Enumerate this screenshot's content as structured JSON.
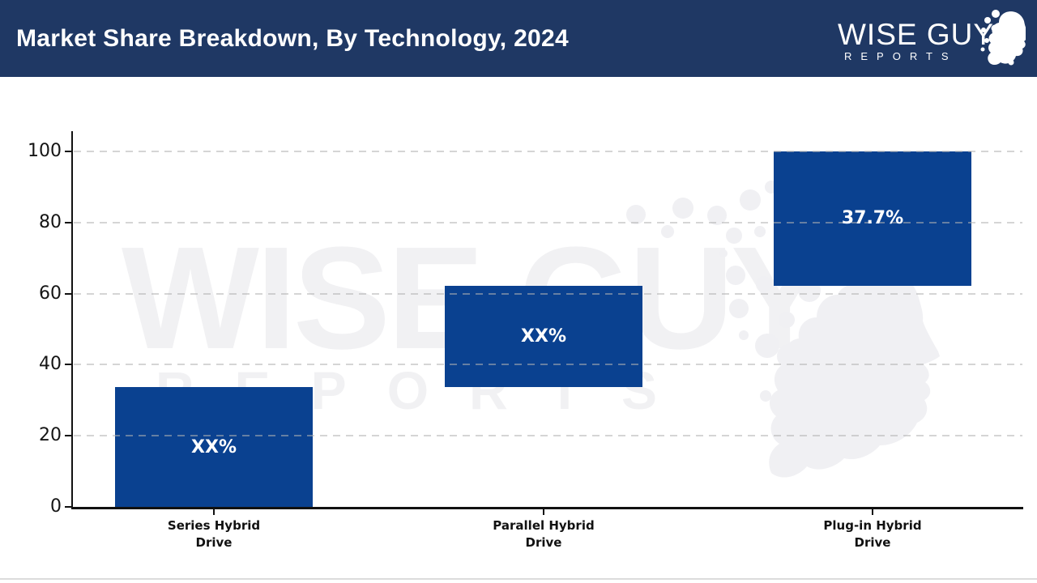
{
  "header": {
    "title": "Market Share Breakdown, By Technology, 2024",
    "logo": {
      "line1": "WISE GUY",
      "line2": "REPORTS"
    },
    "bg_color": "#1f3864"
  },
  "watermark": {
    "line1": "WISE GUY",
    "line2": "REPORTS"
  },
  "chart_data": {
    "type": "bar",
    "subtype": "waterfall",
    "title": "Market Share Breakdown, By Technology, 2024",
    "categories": [
      {
        "line1": "Series Hybrid",
        "line2": "Drive"
      },
      {
        "line1": "Parallel Hybrid",
        "line2": "Drive"
      },
      {
        "line1": "Plug-in Hybrid",
        "line2": "Drive"
      }
    ],
    "segments": [
      {
        "start": 0,
        "end": 33.7,
        "label": "XX%"
      },
      {
        "start": 33.7,
        "end": 62.3,
        "label": "XX%"
      },
      {
        "start": 62.3,
        "end": 100,
        "label": "37.7%"
      }
    ],
    "yticks": [
      0,
      20,
      40,
      60,
      80,
      100
    ],
    "ylim": [
      0,
      100
    ],
    "xlabel": "",
    "ylabel": "",
    "grid": "horizontal-dashed",
    "legend": "none",
    "bar_color": "#0a4190"
  },
  "colors": {
    "header_navy": "#1f3864",
    "bar_blue": "#0a4190",
    "grid_gray": "#d9d9d9",
    "axis_black": "#111111"
  }
}
